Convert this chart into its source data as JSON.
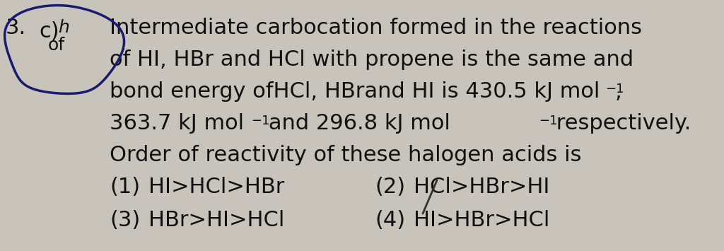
{
  "bg_color": "#c8c4bc",
  "text_color": "#111111",
  "line1a": "Intermediate carbocation formed in the reactions",
  "line2": "of HI, HBr and HCl with propene is the same and",
  "line3a": "bond energy ofHCl, HBrand HI is 430.5 kJ mol",
  "line3b": "−1",
  "line3c": ",",
  "line4a": "363.7 kJ mol",
  "line4b": "−1",
  "line4c": " and 296.8 kJ mol",
  "line4d": "−1",
  "line4e": " respectively.",
  "line5": "Order of reactivity of these halogen acids is",
  "opt1_num": "(1)",
  "opt1_txt": "HI>HCl>HBr",
  "opt2_num": "(2)",
  "opt2_txt": "HCl>HBr>HI",
  "opt3_num": "(3)",
  "opt3_txt": "HBr>HI>HCl",
  "opt4_num": "(4)",
  "opt4_txt": "HI>HBr>HCl",
  "circle_color": "#1a1a6e",
  "line_color": "#333333"
}
